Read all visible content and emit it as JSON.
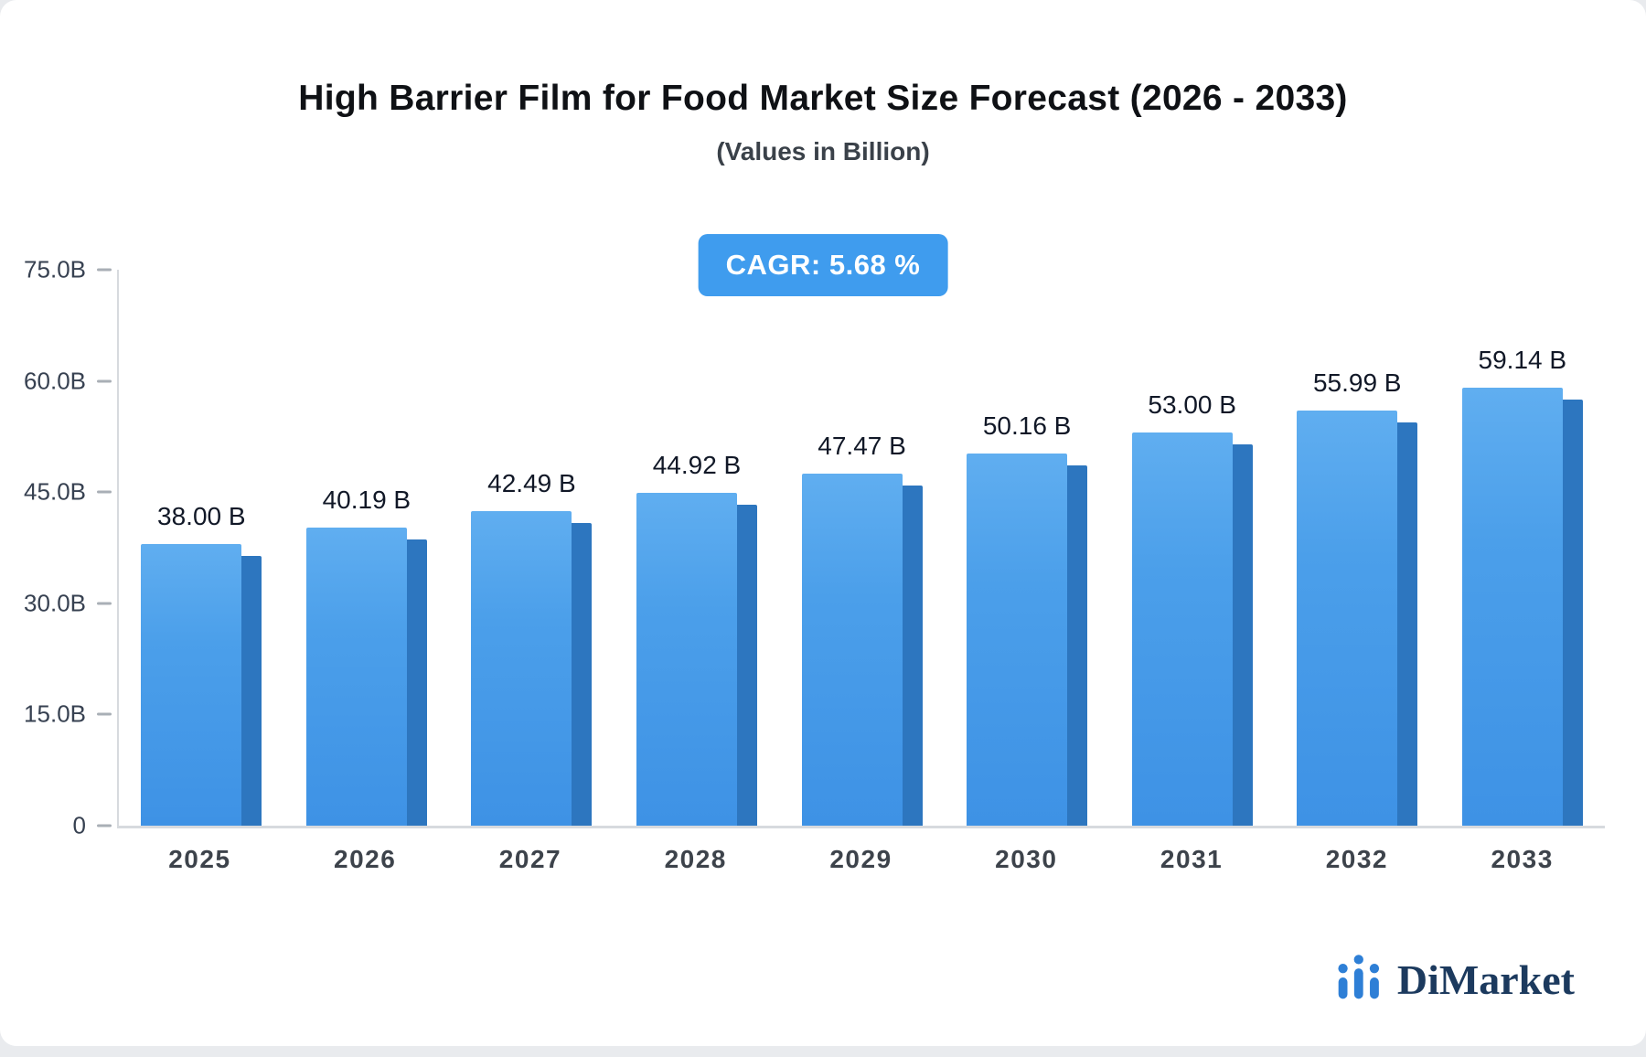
{
  "title": "High Barrier Film for Food Market Size Forecast (2026 - 2033)",
  "subtitle": "(Values in Billion)",
  "cagr_label": "CAGR: 5.68 %",
  "brand": {
    "name": "DiMarket"
  },
  "colors": {
    "bar_front_top": "#60aef0",
    "bar_front_bottom": "#3e92e5",
    "bar_side": "#2d76bf",
    "badge_background": "#3f9cee",
    "axis_line": "#d7dade",
    "brand_text": "#1c3a5e",
    "brand_icon": "#2e7fd6"
  },
  "chart_data": {
    "type": "bar",
    "categories": [
      "2025",
      "2026",
      "2027",
      "2028",
      "2029",
      "2030",
      "2031",
      "2032",
      "2033"
    ],
    "values": [
      38.0,
      40.19,
      42.49,
      44.92,
      47.47,
      50.16,
      53.0,
      55.99,
      59.14
    ],
    "value_labels": [
      "38.00 B",
      "40.19 B",
      "42.49 B",
      "44.92 B",
      "47.47 B",
      "50.16 B",
      "53.00 B",
      "55.99 B",
      "59.14 B"
    ],
    "title": "High Barrier Film for Food Market Size Forecast (2026 - 2033)",
    "subtitle": "(Values in Billion)",
    "xlabel": "",
    "ylabel": "",
    "ylim": [
      0,
      75
    ],
    "yticks": [
      0,
      15,
      30,
      45,
      60,
      75
    ],
    "ytick_labels": [
      "0",
      "15.0B",
      "30.0B",
      "45.0B",
      "60.0B",
      "75.0B"
    ],
    "grid": false,
    "legend": false,
    "annotation": "CAGR: 5.68 %"
  }
}
